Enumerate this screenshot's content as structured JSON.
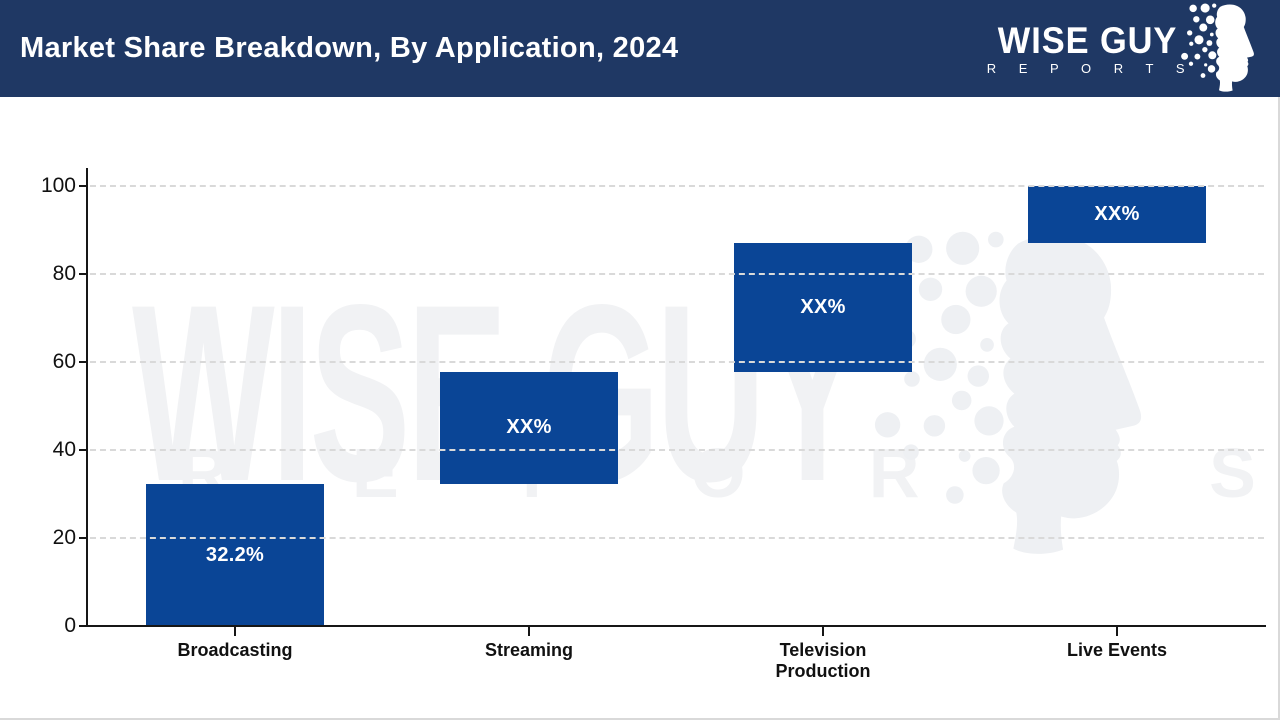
{
  "header": {
    "title": "Market Share Breakdown, By Application, 2024",
    "logo_line1": "WISE GUY",
    "logo_line2": "R E P O R T S"
  },
  "watermark": {
    "line1": "WISE GUY",
    "line2": "R E P O R T S"
  },
  "colors": {
    "header_bg": "#1f3864",
    "bar_blue": "#0a4596",
    "grid_gray": "#d9d9d9",
    "axis_color": "#161616",
    "bar_label_color": "#ffffff"
  },
  "chart_data": {
    "type": "bar",
    "subtype": "waterfall",
    "title": "Market Share Breakdown, By Application, 2024",
    "categories": [
      "Broadcasting",
      "Streaming",
      "Television Production",
      "Live Events"
    ],
    "category_lines": [
      [
        "Broadcasting"
      ],
      [
        "Streaming"
      ],
      [
        "Television",
        "Production"
      ],
      [
        "Live Events"
      ]
    ],
    "segments": [
      {
        "category": "Broadcasting",
        "start": 0,
        "end": 32.2,
        "label": "32.2%"
      },
      {
        "category": "Streaming",
        "start": 32.2,
        "end": 57.8,
        "label": "XX%"
      },
      {
        "category": "Television Production",
        "start": 57.8,
        "end": 87,
        "label": "XX%"
      },
      {
        "category": "Live Events",
        "start": 87,
        "end": 100,
        "label": "XX%"
      }
    ],
    "ylim": [
      0,
      100
    ],
    "yticks": [
      0,
      20,
      40,
      60,
      80,
      100
    ],
    "grid": "horizontal-dashed",
    "legend": "none",
    "xlabel": "",
    "ylabel": ""
  }
}
